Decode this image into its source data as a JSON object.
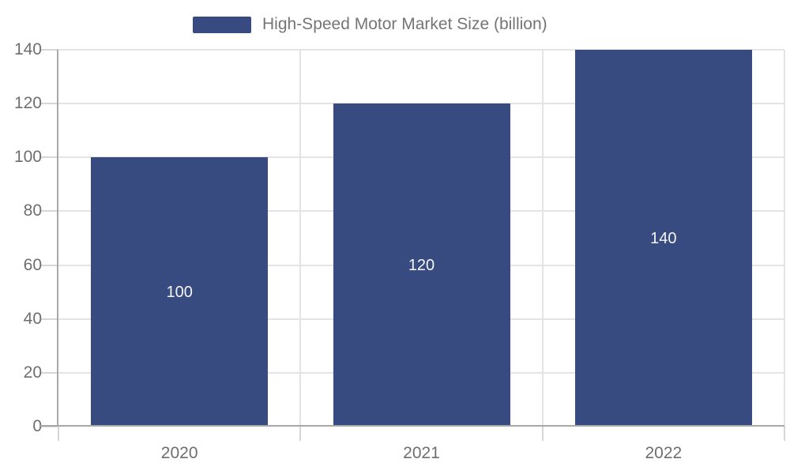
{
  "page": {
    "background": "#ffffff"
  },
  "legend": {
    "label": "High-Speed Motor Market Size (billion)",
    "text_color": "#757575"
  },
  "chart_data": {
    "type": "bar",
    "title": "High-Speed Motor Market Size (billion)",
    "categories": [
      "2020",
      "2021",
      "2022"
    ],
    "series": [
      {
        "name": "High-Speed Motor Market Size (billion)",
        "values": [
          100,
          120,
          140
        ]
      }
    ],
    "value_labels": [
      "100",
      "120",
      "140"
    ],
    "xlabel": "",
    "ylabel": "",
    "ylim": [
      0,
      140
    ],
    "yticks": [
      0,
      20,
      40,
      60,
      80,
      100,
      120,
      140
    ],
    "grid": true,
    "legend_position": "top-center",
    "colors": {
      "bar": "#374b80",
      "grid": "#e4e4e4",
      "tick": "#d6d6da",
      "axis": "#a8a8a8",
      "tick_label": "#6e6e6e",
      "value_label": "#f5f5f5"
    }
  }
}
